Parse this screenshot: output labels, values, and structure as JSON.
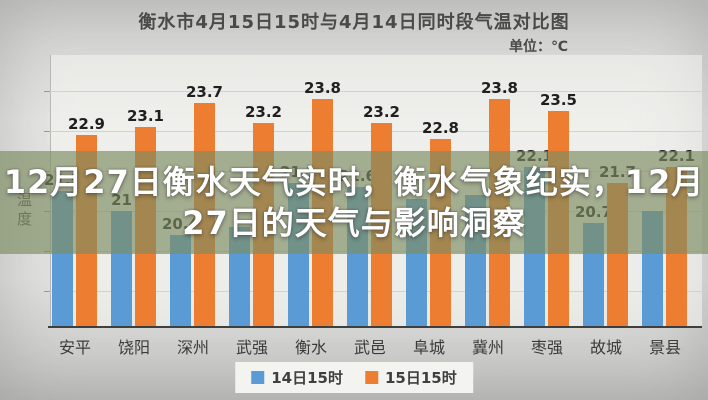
{
  "title": "衡水市4月15日15时与4月14日同时段气温对比图",
  "unit_label": "单位：℃",
  "y_axis_title": "温度",
  "overlay": {
    "line1": "12月27日衡水天气实时，衡水气象纪实，12月",
    "line2": "27日的天气与影响洞察"
  },
  "legend": [
    {
      "label": "14日15时",
      "color": "#5B9BD5"
    },
    {
      "label": "15日15时",
      "color": "#ED7D31"
    }
  ],
  "colors": {
    "bar_blue": "#5B9BD5",
    "bar_orange": "#ED7D31",
    "overlay_band": "#7C8B61",
    "axis_line": "#3F3F3F"
  },
  "chart_data": {
    "type": "bar",
    "title": "衡水市4月15日15时与4月14日同时段气温对比图",
    "unit": "℃",
    "ylabel": "温度",
    "ylim": [
      18,
      24.3
    ],
    "grid": true,
    "legend_position": "bottom",
    "categories": [
      "安平",
      "饶阳",
      "深州",
      "武强",
      "衡水",
      "武邑",
      "阜城",
      "冀州",
      "枣强",
      "故城",
      "景县"
    ],
    "series": [
      {
        "name": "14日15时",
        "color": "#5B9BD5",
        "values": [
          21.5,
          21,
          20.4,
          20.6,
          21.7,
          21.6,
          21.3,
          21.4,
          22.1,
          20.7,
          21.0
        ],
        "labels_visible": [
          true,
          true,
          true,
          false,
          true,
          true,
          false,
          false,
          true,
          true,
          false
        ]
      },
      {
        "name": "15日15时",
        "color": "#ED7D31",
        "values": [
          22.9,
          23.1,
          23.7,
          23.2,
          23.8,
          23.2,
          22.8,
          23.8,
          23.5,
          21.7,
          22.1
        ],
        "labels_visible": [
          true,
          true,
          true,
          true,
          true,
          true,
          true,
          true,
          true,
          true,
          true
        ]
      }
    ]
  }
}
